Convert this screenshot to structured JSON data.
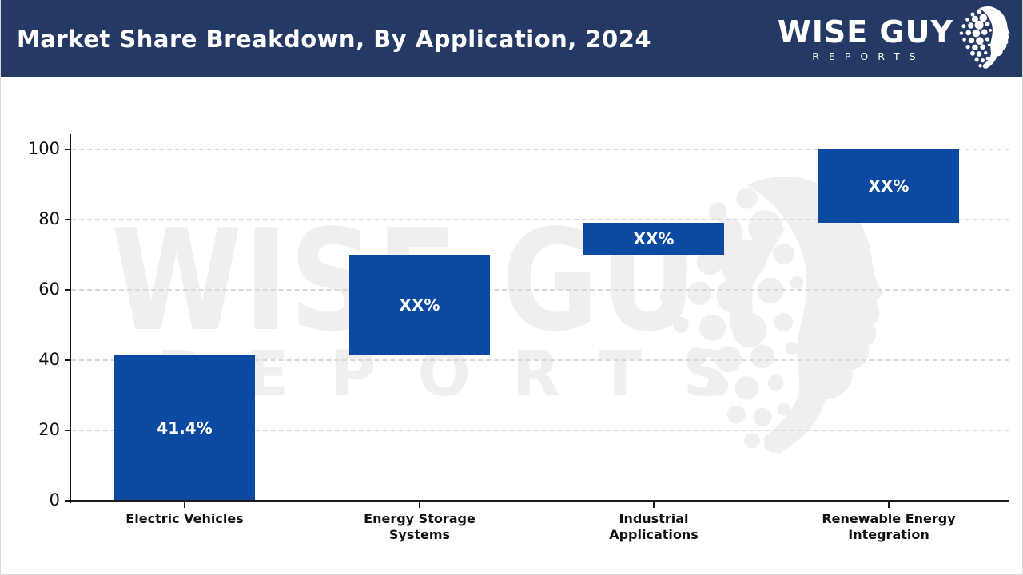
{
  "header": {
    "title": "Market Share Breakdown, By Application, 2024",
    "logo": {
      "line1": "WISE GUY",
      "line2": "REPORTS"
    }
  },
  "watermark": {
    "line1": "WISE GUY",
    "line2": "REPORTS"
  },
  "chart_data": {
    "type": "bar",
    "subtype": "waterfall",
    "title": "Market Share Breakdown, By Application, 2024",
    "categories": [
      "Electric Vehicles",
      "Energy Storage\nSystems",
      "Industrial\nApplications",
      "Renewable Energy\nIntegration"
    ],
    "bars": [
      {
        "category": "Electric Vehicles",
        "from": 0,
        "to": 41.4,
        "label": "41.4%"
      },
      {
        "category": "Energy Storage Systems",
        "from": 41.4,
        "to": 70,
        "label": "XX%"
      },
      {
        "category": "Industrial Applications",
        "from": 70,
        "to": 79,
        "label": "XX%"
      },
      {
        "category": "Renewable Energy Integration",
        "from": 79,
        "to": 100,
        "label": "XX%"
      }
    ],
    "xlabel": "",
    "ylabel": "",
    "ylim": [
      0,
      100
    ],
    "yticks": [
      0,
      20,
      40,
      60,
      80,
      100
    ],
    "grid": "horizontal-dashed",
    "legend": false,
    "colors": {
      "bar": "#0B4AA0",
      "bar_label": "#ffffff",
      "axis": "#1a1a1a",
      "gridline": "#d9d9d9",
      "header_bg": "#243964",
      "header_text": "#ffffff",
      "watermark": "#efefef"
    }
  }
}
